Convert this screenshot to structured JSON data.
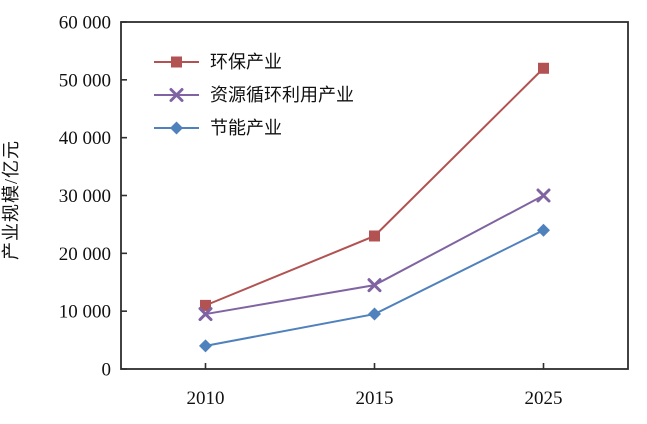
{
  "figure": {
    "background": "#ffffff",
    "axis_color": "#2e2e2e",
    "text_color": "#111111"
  },
  "chart_data": {
    "type": "line",
    "title": "",
    "xlabel": "",
    "ylabel": "产业规模/亿元",
    "categories": [
      "2010",
      "2015",
      "2025"
    ],
    "series": [
      {
        "name": "环保产业",
        "marker": "square",
        "color": "#b25252",
        "values": [
          11000,
          23000,
          52000
        ]
      },
      {
        "name": "资源循环利用产业",
        "marker": "x",
        "color": "#8064a2",
        "values": [
          9500,
          14500,
          30000
        ]
      },
      {
        "name": "节能产业",
        "marker": "diamond",
        "color": "#4f81bd",
        "values": [
          4000,
          9500,
          24000
        ]
      }
    ],
    "ylim": [
      0,
      60000
    ],
    "ytick_step": 10000,
    "ytick_labels": [
      "0",
      "10 000",
      "20 000",
      "30 000",
      "40 000",
      "50 000",
      "60 000"
    ],
    "grid": false,
    "legend_position": "inside-top-left"
  }
}
